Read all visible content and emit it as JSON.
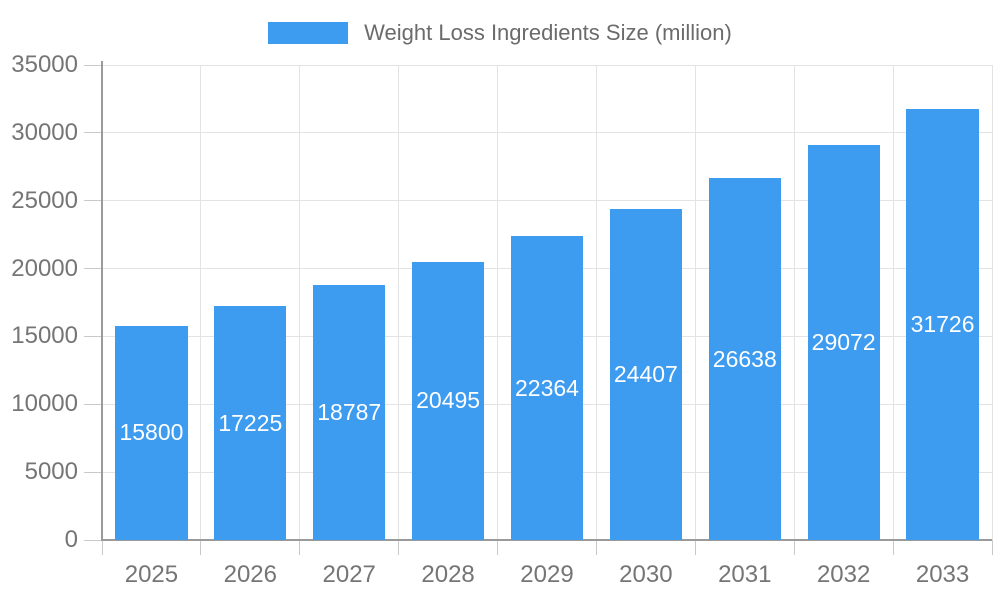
{
  "legend": {
    "label": "Weight Loss Ingredients Size (million)"
  },
  "colors": {
    "bar": "#3d9bf0",
    "grid": "#e3e3e3",
    "axis": "#9a9a9a",
    "tick": "#c9c9c9",
    "axis_text": "#757575",
    "title_text": "#6b6b6b",
    "value_text": "#ffffff",
    "background": "#ffffff"
  },
  "chart_data": {
    "type": "bar",
    "title": "Weight Loss Ingredients Size (million)",
    "categories": [
      "2025",
      "2026",
      "2027",
      "2028",
      "2029",
      "2030",
      "2031",
      "2032",
      "2033"
    ],
    "values": [
      15800,
      17225,
      18787,
      20495,
      22364,
      24407,
      26638,
      29072,
      31726
    ],
    "xlabel": "",
    "ylabel": "",
    "ylim": [
      0,
      35000
    ],
    "ytick_step": 5000,
    "yticks": [
      0,
      5000,
      10000,
      15000,
      20000,
      25000,
      30000,
      35000
    ],
    "grid": true,
    "legend_position": "top",
    "value_label_position": "inside-center"
  }
}
